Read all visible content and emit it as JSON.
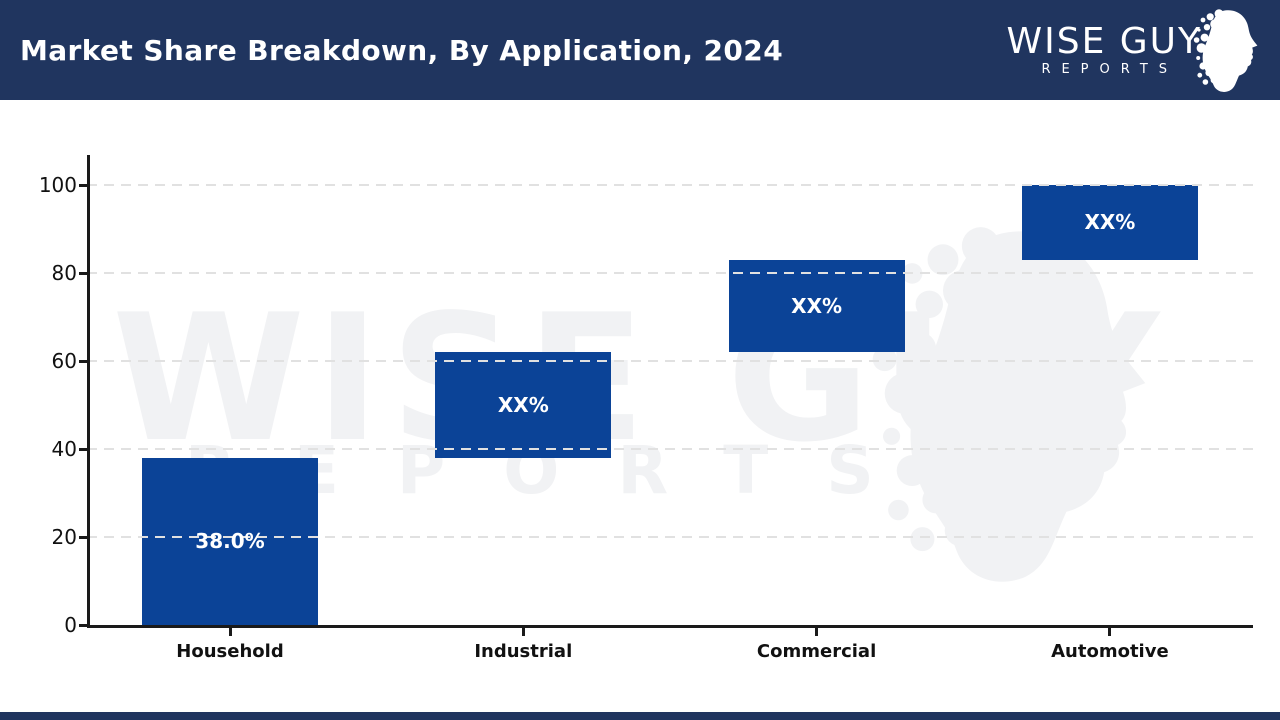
{
  "header": {
    "title": "Market Share Breakdown, By Application, 2024",
    "logo": {
      "wordmark": "WISE GUY",
      "subtext": "REPORTS"
    }
  },
  "watermark": {
    "line1": "WISE GUY",
    "line2": "REPORTS"
  },
  "chart_data": {
    "type": "bar",
    "variant": "floating-segment-waterfall",
    "title": "Market Share Breakdown, By Application, 2024",
    "categories": [
      "Household",
      "Industrial",
      "Commercial",
      "Automotive"
    ],
    "series": [
      {
        "name": "Market share (%)",
        "segments": [
          {
            "category": "Household",
            "start": 0,
            "end": 38,
            "label": "38.0%"
          },
          {
            "category": "Industrial",
            "start": 38,
            "end": 62,
            "label": "XX%"
          },
          {
            "category": "Commercial",
            "start": 62,
            "end": 83,
            "label": "XX%"
          },
          {
            "category": "Automotive",
            "start": 83,
            "end": 100,
            "label": "XX%"
          }
        ]
      }
    ],
    "ylim": [
      0,
      100
    ],
    "yticks": [
      0,
      20,
      40,
      60,
      80,
      100
    ],
    "grid": {
      "horizontal": true,
      "style": "dashed"
    },
    "legend": "none",
    "colors": {
      "bar": "#0b4397",
      "bar_label": "#ffffff",
      "axis": "#1a1a1a",
      "grid": "#e1e1e1",
      "tick_label": "#111111"
    }
  },
  "colors": {
    "header_bg": "#20355f",
    "footer_bg": "#20355f",
    "chart_bg": "#ffffff",
    "watermark": "#f1f2f4"
  }
}
